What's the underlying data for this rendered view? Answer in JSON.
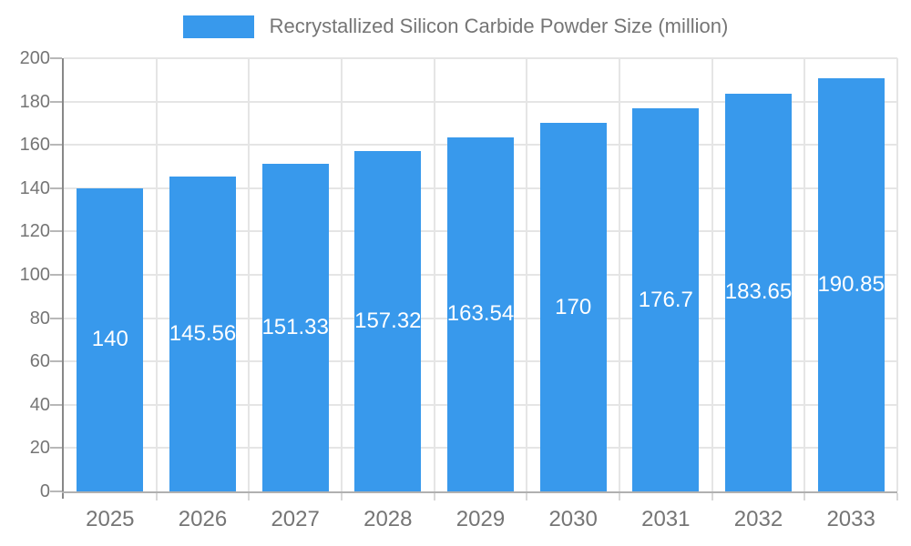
{
  "legend": {
    "label": "Recrystallized Silicon Carbide Powder Size (million)"
  },
  "chart_data": {
    "type": "bar",
    "title": "Recrystallized Silicon Carbide Powder Size (million)",
    "categories": [
      "2025",
      "2026",
      "2027",
      "2028",
      "2029",
      "2030",
      "2031",
      "2032",
      "2033"
    ],
    "series": [
      {
        "name": "Recrystallized Silicon Carbide Powder Size (million)",
        "values": [
          140,
          145.56,
          151.33,
          157.32,
          163.54,
          170,
          176.7,
          183.65,
          190.85
        ]
      }
    ],
    "value_labels": [
      "140",
      "145.56",
      "151.33",
      "157.32",
      "163.54",
      "170",
      "176.7",
      "183.65",
      "190.85"
    ],
    "xlabel": "",
    "ylabel": "",
    "ylim": [
      0,
      200
    ],
    "ytick_step": 20,
    "ytick_labels": [
      "0",
      "20",
      "40",
      "60",
      "80",
      "100",
      "120",
      "140",
      "160",
      "180",
      "200"
    ],
    "grid": true,
    "legend_position": "top",
    "colors": {
      "bar": "#3899ec",
      "value_label": "#ffffff",
      "axis_text": "#757575",
      "legend_text": "#757575",
      "gridline": "#e5e5e5",
      "y_axis_line": "#888888",
      "x_axis_line": "#b0b0b0",
      "y_tick": "#b8b8b8",
      "x_tick": "#d8d8d8",
      "background": "#ffffff"
    }
  }
}
